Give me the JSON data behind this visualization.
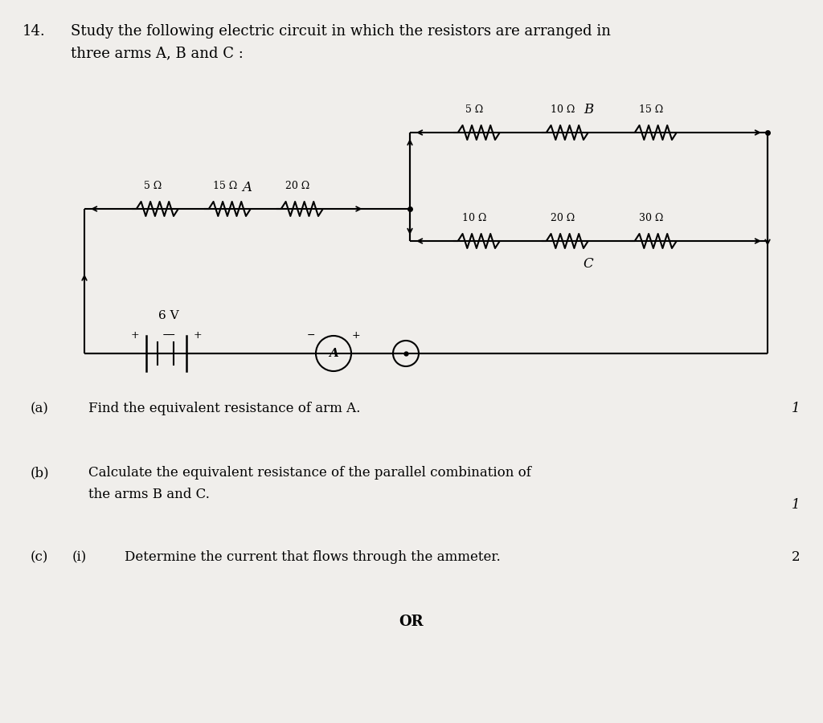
{
  "bg_color": "#f0eeeb",
  "title_number": "14.",
  "title_text1": "Study the following electric circuit in which the resistors are arranged in",
  "title_text2": "three arms A, B and C :",
  "question_a_label": "(a)",
  "question_a_text": "Find the equivalent resistance of arm A.",
  "question_a_mark": "1",
  "question_b_label": "(b)",
  "question_b_text1": "Calculate the equivalent resistance of the parallel combination of",
  "question_b_text2": "the arms B and C.",
  "question_b_mark": "1",
  "question_c_label": "(c)",
  "question_c_sub": "(i)",
  "question_c_text": "Determine the current that flows through the ammeter.",
  "question_c_mark": "2",
  "or_text": "OR",
  "arm_a_resistors": [
    "5Ω",
    "15Ω",
    "20Ω"
  ],
  "arm_b_resistors": [
    "5Ω",
    "10Ω",
    "15Ω"
  ],
  "arm_c_resistors": [
    "10Ω",
    "20Ω",
    "30Ω"
  ],
  "voltage": "6 V",
  "label_A": "A",
  "label_B": "B",
  "label_C": "C",
  "label_Amm": "A"
}
